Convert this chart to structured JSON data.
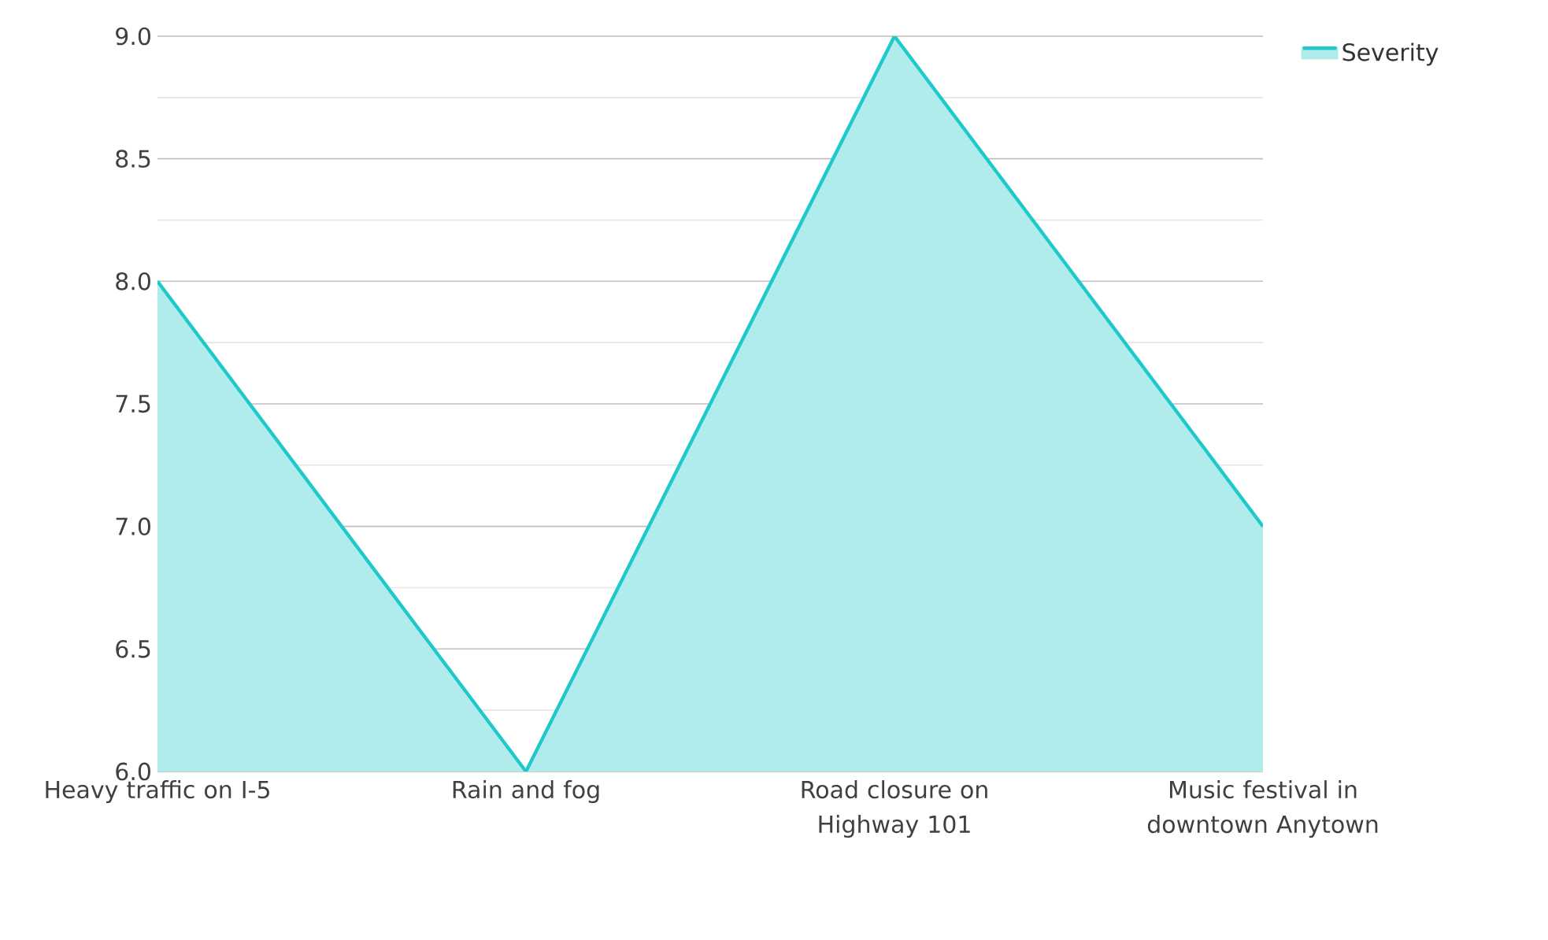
{
  "chart_data": {
    "type": "area",
    "categories": [
      "Heavy traffic on I-5",
      "Rain and fog",
      "Road closure on Highway 101",
      "Music festival in downtown Anytown"
    ],
    "series": [
      {
        "name": "Severity",
        "color": "#1fc9c9",
        "values": [
          8,
          6,
          9,
          7
        ]
      }
    ],
    "ylim": [
      6,
      9
    ],
    "yticks": [
      {
        "value": 6,
        "label": "6.0"
      },
      {
        "value": 6.5,
        "label": "6.5"
      },
      {
        "value": 7,
        "label": "7.0"
      },
      {
        "value": 7.5,
        "label": "7.5"
      },
      {
        "value": 8,
        "label": "8.0"
      },
      {
        "value": 8.5,
        "label": "8.5"
      },
      {
        "value": 9,
        "label": "9.0"
      }
    ],
    "grid": "y",
    "legend": "top right"
  }
}
